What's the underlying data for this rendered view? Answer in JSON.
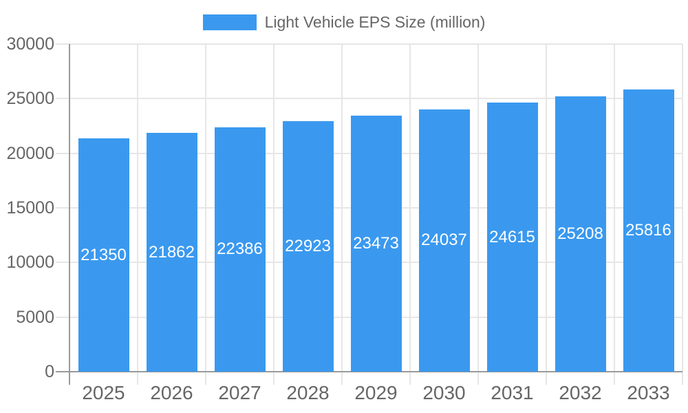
{
  "chart_data": {
    "type": "bar",
    "title": "",
    "legend_position": "top",
    "categories": [
      "2025",
      "2026",
      "2027",
      "2028",
      "2029",
      "2030",
      "2031",
      "2032",
      "2033"
    ],
    "series": [
      {
        "name": "Light Vehicle EPS Size (million)",
        "values": [
          21350,
          21862,
          22386,
          22923,
          23473,
          24037,
          24615,
          25208,
          25816
        ]
      }
    ],
    "value_labels": [
      "21350",
      "21862",
      "22386",
      "22923",
      "23473",
      "24037",
      "24615",
      "25208",
      "25816"
    ],
    "xlabel": "",
    "ylabel": "",
    "ylim": [
      0,
      30000
    ],
    "yticks": [
      0,
      5000,
      10000,
      15000,
      20000,
      25000,
      30000
    ],
    "grid": true,
    "colors": {
      "bar": "#3A99EF",
      "axis": "#999999",
      "grid": "#E6E6E6",
      "tick_label": "#666666",
      "value_label": "#FFFFFF"
    }
  }
}
